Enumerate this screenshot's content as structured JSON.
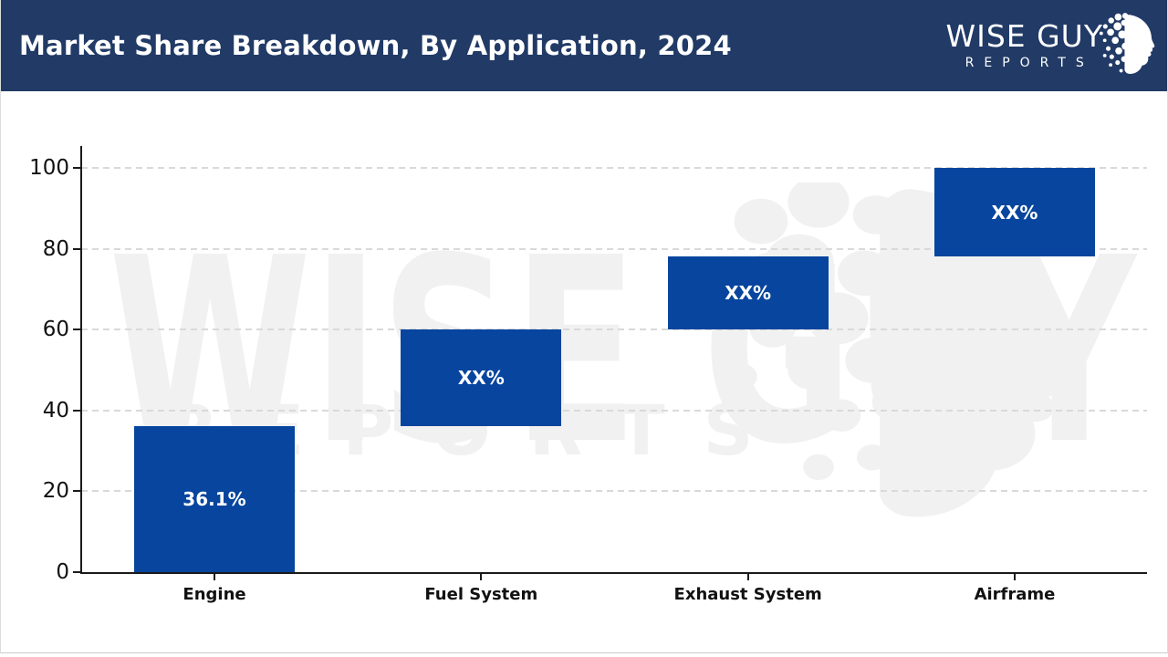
{
  "header": {
    "title": "Market Share Breakdown, By Application, 2024",
    "logo": {
      "brand": "WISE GUY",
      "tagline": "REPORTS"
    }
  },
  "watermark": {
    "brand": "WISE GUY",
    "tagline": "REPORTS"
  },
  "chart_data": {
    "type": "bar",
    "variant": "waterfall",
    "title": "Market Share Breakdown, By Application, 2024",
    "categories": [
      "Engine",
      "Fuel System",
      "Exhaust System",
      "Airframe"
    ],
    "series": [
      {
        "name": "Market share by application (%)",
        "segments": [
          {
            "category": "Engine",
            "start": 0,
            "end": 36.1,
            "label": "36.1%"
          },
          {
            "category": "Fuel System",
            "start": 36.1,
            "end": 60,
            "label": "XX%"
          },
          {
            "category": "Exhaust System",
            "start": 60,
            "end": 78,
            "label": "XX%"
          },
          {
            "category": "Airframe",
            "start": 78,
            "end": 100,
            "label": "XX%"
          }
        ]
      }
    ],
    "xlabel": "",
    "ylabel": "",
    "y_ticks": [
      0,
      20,
      40,
      60,
      80,
      100
    ],
    "ylim": [
      0,
      105
    ],
    "grid": "horizontal-dashed",
    "legend": "none",
    "colors": {
      "bar": "#07459e",
      "bar_label": "#ffffff",
      "axis": "#1a1a1a",
      "tick_text": "#111111",
      "grid": "#d9d9d9",
      "header_bg": "#213a66",
      "header_text": "#ffffff",
      "watermark": "#f1f1f1"
    }
  }
}
